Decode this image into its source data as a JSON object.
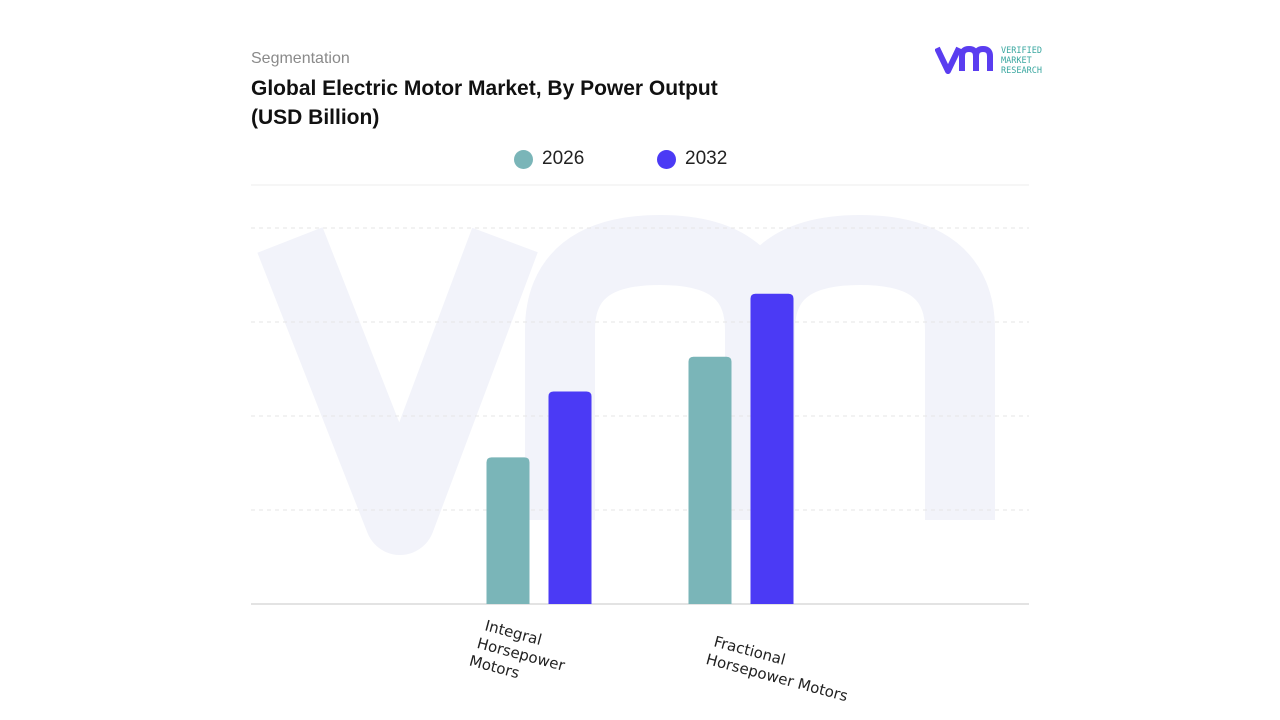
{
  "header": {
    "segment": "Segmentation",
    "title_line1": "Global Electric Motor Market, By Power Output",
    "title_line2": "(USD Billion)"
  },
  "logo": {
    "text1": "VERIFIED",
    "text2": "MARKET",
    "text3": "RESEARCH",
    "mark": "vmr"
  },
  "colors": {
    "s2026": "#7ab5b8",
    "s2032": "#4b3af5",
    "grid": "#e6e6e6",
    "watermark": "#f2f3fa"
  },
  "chart_data": {
    "type": "bar",
    "title": "Global Electric Motor Market, By Power Output (USD Billion)",
    "categories": [
      "Integral Horsepower Motors",
      "Fractional Horsepower Motors"
    ],
    "category_lines": [
      [
        "Integral",
        "Horsepower",
        "Motors"
      ],
      [
        "Fractional",
        "Horsepower Motors"
      ]
    ],
    "series": [
      {
        "name": "2026",
        "values": [
          1.56,
          2.63
        ]
      },
      {
        "name": "2032",
        "values": [
          2.26,
          3.3
        ]
      }
    ],
    "ylim": [
      0,
      4
    ],
    "grid": true,
    "legend": "top-center",
    "y_tick_labels_shown": false
  }
}
